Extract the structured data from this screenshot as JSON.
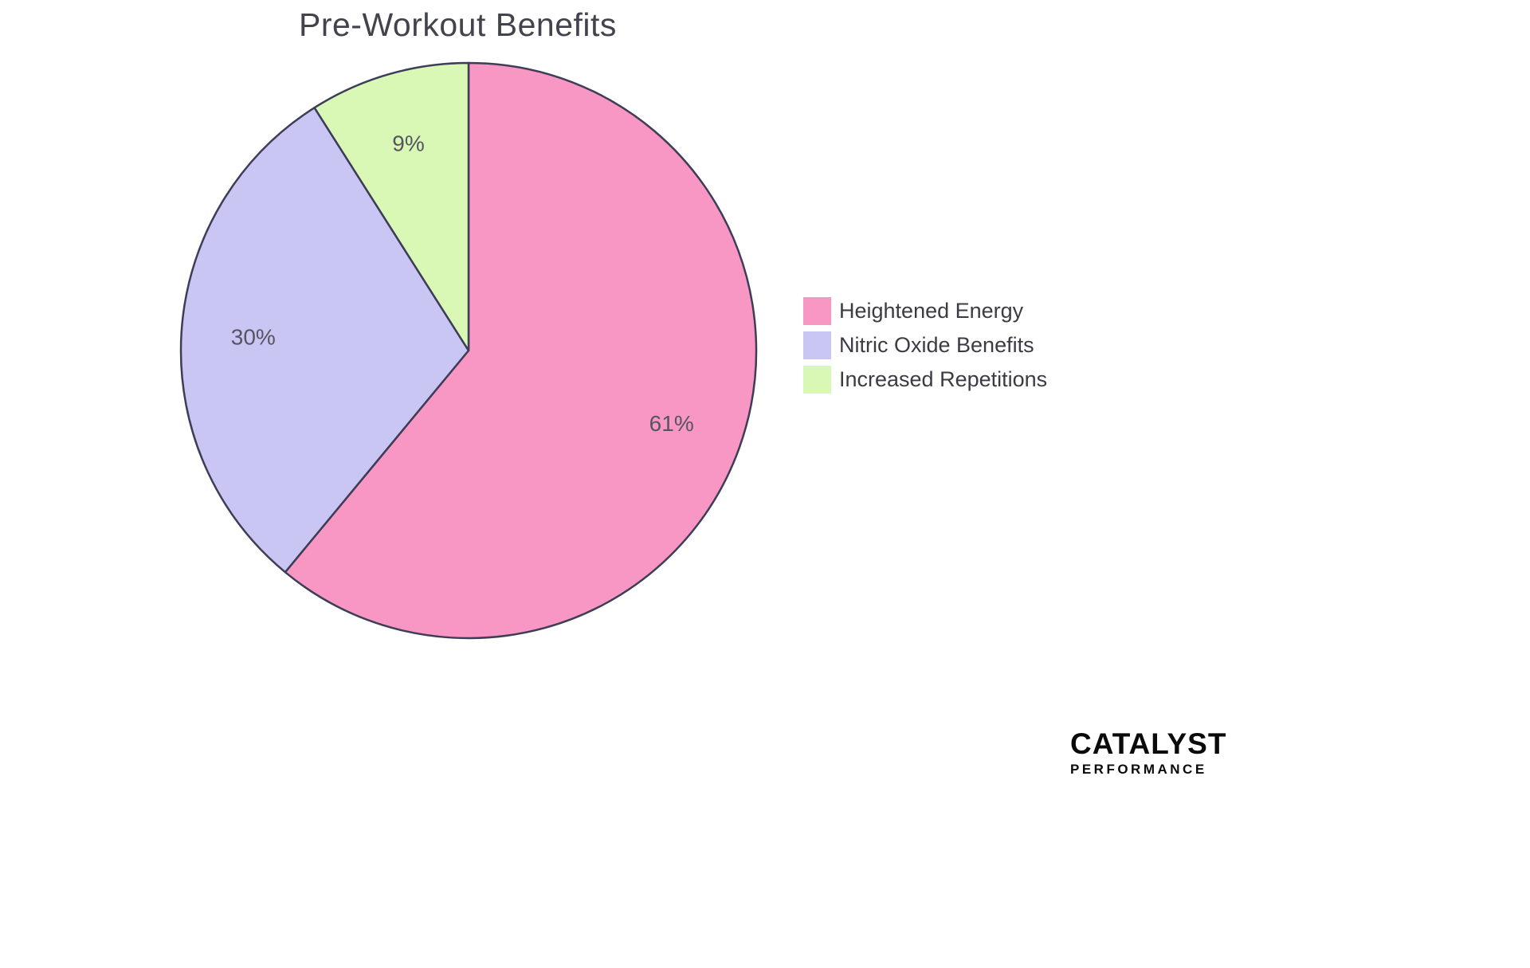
{
  "chart_data": {
    "type": "pie",
    "title": "Pre-Workout Benefits",
    "labels": [
      "Heightened Energy",
      "Nitric Oxide Benefits",
      "Increased Repetitions"
    ],
    "values": [
      61,
      30,
      9
    ],
    "percent_labels": [
      "61%",
      "30%",
      "9%"
    ],
    "colors": [
      "#F897C4",
      "#C9C6F4",
      "#D9F8B6"
    ],
    "stroke_color": "#3d3d57",
    "start_angle_deg": -90,
    "direction": "clockwise",
    "legend_position": "right",
    "grid": false
  },
  "branding": {
    "line1": "CATALYST",
    "line2": "PERFORMANCE"
  }
}
